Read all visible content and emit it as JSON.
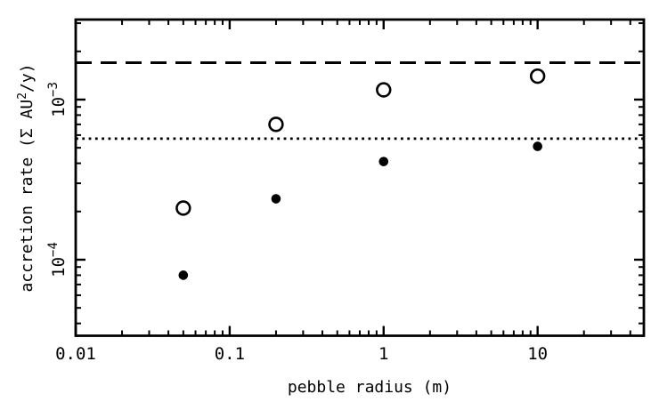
{
  "colors": {
    "ink": "#000000",
    "background": "#ffffff"
  },
  "chart_data": {
    "type": "scatter",
    "title": "",
    "xlabel": "pebble radius (m)",
    "ylabel": "accretion rate (Σ AU²/y)",
    "ylabel_parts": [
      {
        "text": "accretion rate (Σ AU"
      },
      {
        "text": "2",
        "sup": true
      },
      {
        "text": "/y)"
      }
    ],
    "x_scale": "log",
    "y_scale": "log",
    "xlim": [
      0.01,
      49
    ],
    "ylim": [
      3.35e-05,
      0.00316
    ],
    "grid": false,
    "legend": "none",
    "x_major_ticks": [
      0.01,
      0.1,
      1,
      10
    ],
    "x_tick_labels": [
      "0.01",
      "0.1",
      "1",
      "10"
    ],
    "y_major_ticks": [
      0.0001,
      0.001
    ],
    "y_tick_labels": [
      {
        "base": "10",
        "exp": "−4"
      },
      {
        "base": "10",
        "exp": "−3"
      }
    ],
    "series": [
      {
        "name": "open circles",
        "marker": "open-circle",
        "x": [
          0.05,
          0.2,
          1,
          10
        ],
        "y": [
          0.00021,
          0.0007,
          0.00115,
          0.0014
        ]
      },
      {
        "name": "filled circles",
        "marker": "filled-circle",
        "x": [
          0.05,
          0.2,
          1,
          10
        ],
        "y": [
          8e-05,
          0.00024,
          0.00041,
          0.00051
        ]
      }
    ],
    "hlines": [
      {
        "name": "dashed reference line",
        "style": "dashed",
        "y": 0.0017
      },
      {
        "name": "dotted reference line",
        "style": "dotted",
        "y": 0.00057
      }
    ]
  }
}
